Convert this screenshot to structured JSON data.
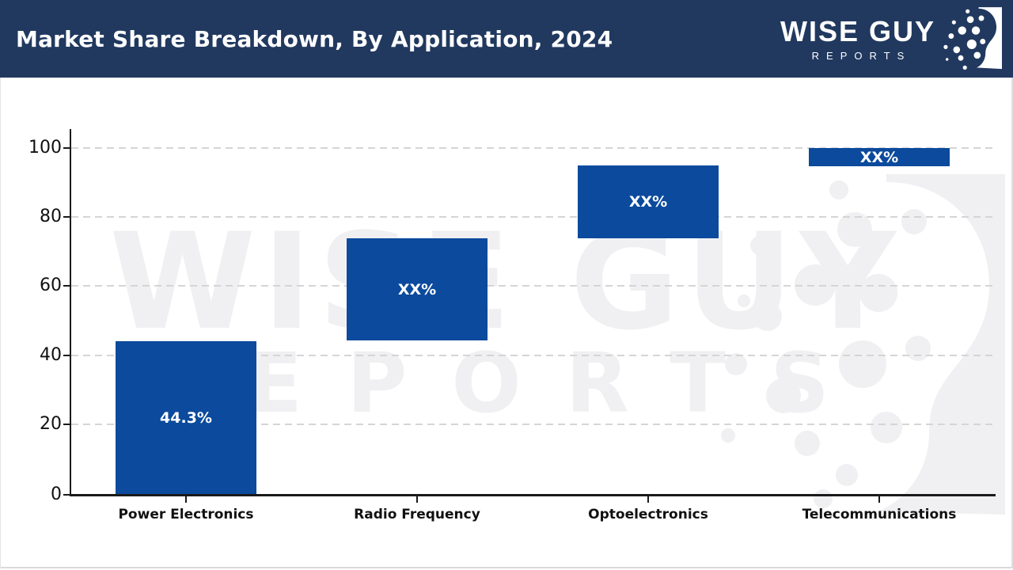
{
  "header": {
    "title": "Market Share Breakdown, By Application, 2024",
    "logo": {
      "name": "WISE GUY",
      "sub": "REPORTS"
    }
  },
  "watermark": {
    "line1": "WISE GUY",
    "line2": "REPORTS"
  },
  "chart_data": {
    "type": "bar",
    "subtype": "waterfall",
    "title": "Market Share Breakdown, By Application, 2024",
    "categories": [
      "Power Electronics",
      "Radio Frequency",
      "Optoelectronics",
      "Telecommunications"
    ],
    "segments": [
      {
        "category": "Power Electronics",
        "start": 0,
        "end": 44.3,
        "label": "44.3%"
      },
      {
        "category": "Radio Frequency",
        "start": 44.3,
        "end": 73.8,
        "label": "XX%"
      },
      {
        "category": "Optoelectronics",
        "start": 73.8,
        "end": 94.8,
        "label": "XX%"
      },
      {
        "category": "Telecommunications",
        "start": 94.8,
        "end": 100,
        "label": "XX%"
      }
    ],
    "yticks": [
      0,
      20,
      40,
      60,
      80,
      100
    ],
    "ylim": [
      0,
      105
    ],
    "ylabel": "",
    "xlabel": "",
    "grid": "horizontal-dashed",
    "legend": "none",
    "bar_color": "#0b4a9c"
  },
  "colors": {
    "header_bg": "#21395f",
    "bar": "#0b4a9c",
    "axis": "#1a1a1a",
    "grid": "#d5d5d5",
    "watermark": "#f0f0f2"
  }
}
